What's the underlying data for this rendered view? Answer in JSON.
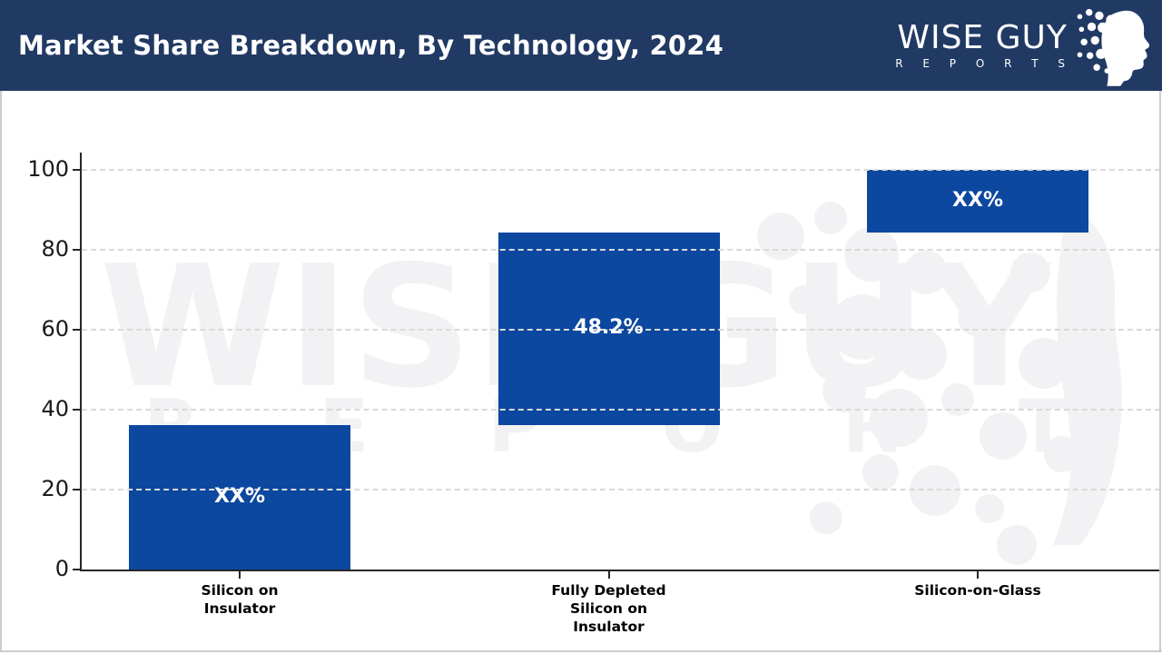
{
  "header": {
    "title": "Market Share Breakdown, By Technology, 2024",
    "logo": {
      "name": "WISE GUY",
      "sub": "R E P O R T S"
    },
    "bg_color": "#213A64"
  },
  "watermark": {
    "line1": "WISE GUY",
    "line2": "R E P O R T S"
  },
  "chart_data": {
    "type": "bar",
    "subtype": "floating-waterfall",
    "title": "Market Share Breakdown, By Technology, 2024",
    "categories": [
      [
        "Silicon on",
        "Insulator"
      ],
      [
        "Fully Depleted",
        "Silicon on",
        "Insulator"
      ],
      [
        "Silicon-on-Glass"
      ]
    ],
    "segments": [
      {
        "category": "Silicon on Insulator",
        "start": 0,
        "end": 36.1,
        "value": 36.1,
        "label": "XX%"
      },
      {
        "category": "Fully Depleted Silicon on Insulator",
        "start": 36.1,
        "end": 84.3,
        "value": 48.2,
        "label": "48.2%"
      },
      {
        "category": "Silicon-on-Glass",
        "start": 84.3,
        "end": 100,
        "value": 15.7,
        "label": "XX%"
      }
    ],
    "xlabel": "",
    "ylabel": "",
    "ylim": [
      0,
      100
    ],
    "yticks": [
      0,
      20,
      40,
      60,
      80,
      100
    ],
    "grid": "horizontal-dashed",
    "legend": "none",
    "bar_color": "#0C47A0",
    "grid_color": "#d9d9d9",
    "axis_color": "#262626"
  }
}
